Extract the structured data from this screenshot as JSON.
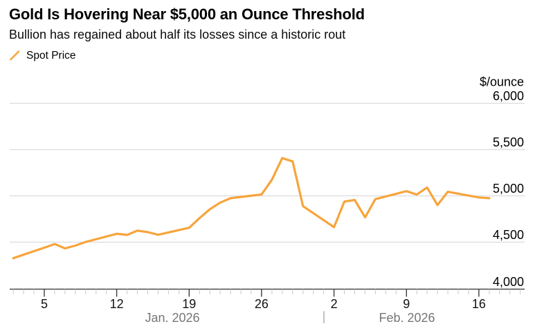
{
  "header": {
    "title": "Gold Is Hovering Near $5,000 an Ounce Threshold",
    "subtitle": "Bullion has regained about half its losses since a historic rout",
    "legend": [
      {
        "label": "Spot Price",
        "marker": "line-slash-icon",
        "color": "#F7A43B"
      }
    ]
  },
  "chart_data": {
    "type": "line",
    "title": "Gold Is Hovering Near $5,000 an Ounce Threshold",
    "subtitle": "Bullion has regained about half its losses since a historic rout",
    "unit_label": "$/ounce",
    "grid": "horizontal",
    "legend_position": "top-left",
    "y_axis": {
      "min": 4000,
      "max": 6000,
      "ticks": [
        {
          "value": 6000,
          "label": "6,000"
        },
        {
          "value": 5500,
          "label": "5,500"
        },
        {
          "value": 5000,
          "label": "5,000"
        },
        {
          "value": 4500,
          "label": "4,500"
        },
        {
          "value": 4000,
          "label": "4,000"
        }
      ]
    },
    "x_axis": {
      "minor_tick_start": "2026-01-02",
      "minor_tick_end": "2026-02-20",
      "labeled_ticks": [
        {
          "date": "2026-01-05",
          "label": "5"
        },
        {
          "date": "2026-01-12",
          "label": "12"
        },
        {
          "date": "2026-01-19",
          "label": "19"
        },
        {
          "date": "2026-01-26",
          "label": "26"
        },
        {
          "date": "2026-02-02",
          "label": "2"
        },
        {
          "date": "2026-02-09",
          "label": "9"
        },
        {
          "date": "2026-02-16",
          "label": "16"
        }
      ],
      "month_labels": [
        {
          "label": "Jan. 2026"
        },
        {
          "label": "Feb. 2026"
        }
      ]
    },
    "series": [
      {
        "name": "Spot Price",
        "color": "#F7A43B",
        "points": [
          [
            "2026-01-02",
            4327
          ],
          [
            "2026-01-05",
            4440
          ],
          [
            "2026-01-06",
            4480
          ],
          [
            "2026-01-07",
            4433
          ],
          [
            "2026-01-08",
            4463
          ],
          [
            "2026-01-09",
            4502
          ],
          [
            "2026-01-12",
            4590
          ],
          [
            "2026-01-13",
            4578
          ],
          [
            "2026-01-14",
            4625
          ],
          [
            "2026-01-15",
            4608
          ],
          [
            "2026-01-16",
            4580
          ],
          [
            "2026-01-19",
            4655
          ],
          [
            "2026-01-20",
            4760
          ],
          [
            "2026-01-21",
            4855
          ],
          [
            "2026-01-22",
            4927
          ],
          [
            "2026-01-23",
            4975
          ],
          [
            "2026-01-26",
            5015
          ],
          [
            "2026-01-27",
            5175
          ],
          [
            "2026-01-28",
            5408
          ],
          [
            "2026-01-29",
            5372
          ],
          [
            "2026-01-30",
            4889
          ],
          [
            "2026-02-02",
            4662
          ],
          [
            "2026-02-03",
            4938
          ],
          [
            "2026-02-04",
            4956
          ],
          [
            "2026-02-05",
            4768
          ],
          [
            "2026-02-06",
            4965
          ],
          [
            "2026-02-09",
            5051
          ],
          [
            "2026-02-10",
            5014
          ],
          [
            "2026-02-11",
            5090
          ],
          [
            "2026-02-12",
            4901
          ],
          [
            "2026-02-13",
            5044
          ],
          [
            "2026-02-16",
            4983
          ],
          [
            "2026-02-17",
            4975
          ]
        ]
      }
    ]
  },
  "colors": {
    "accent_orange": "#F7A43B",
    "grid_line": "#DCDCDC",
    "axis_line": "#2B2B2B",
    "minor_tick": "#C8C8C8",
    "major_tick": "#3D3D3D",
    "month_text": "#767676",
    "divider": "#999999",
    "text": "#000000"
  }
}
